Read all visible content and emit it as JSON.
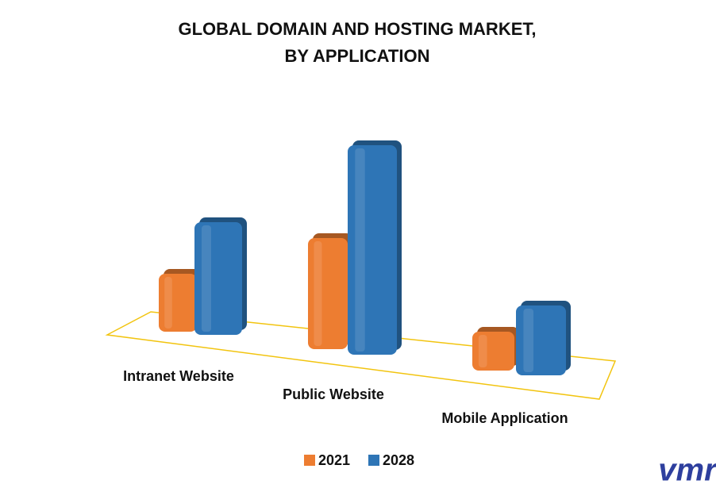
{
  "chart_data": {
    "type": "bar3d",
    "title": "GLOBAL DOMAIN AND HOSTING MARKET,",
    "subtitle": "BY APPLICATION",
    "categories": [
      "Intranet Website",
      "Public Website",
      "Mobile Application"
    ],
    "series": [
      {
        "name": "2021",
        "color": "#ed7d31",
        "values": [
          73,
          140,
          49
        ]
      },
      {
        "name": "2028",
        "color": "#2e75b6",
        "values": [
          142,
          264,
          88
        ]
      }
    ],
    "floor_color": "#f2c40f"
  },
  "logo": "vmr"
}
